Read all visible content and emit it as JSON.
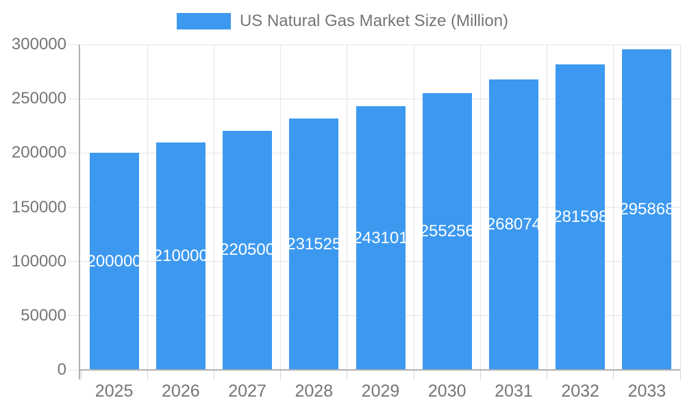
{
  "chart_data": {
    "type": "bar",
    "title": "US Natural Gas Market Size (Million)",
    "legend_entries": [
      "US Natural Gas Market Size (Million)"
    ],
    "legend_position": "top-center",
    "categories": [
      "2025",
      "2026",
      "2027",
      "2028",
      "2029",
      "2030",
      "2031",
      "2032",
      "2033"
    ],
    "values": [
      200000,
      210000,
      220500,
      231525,
      243101,
      255256,
      268074,
      281598,
      295868
    ],
    "value_labels": [
      "200000",
      "210000",
      "220500",
      "231525",
      "243101",
      "255256",
      "268074",
      "281598",
      "295868"
    ],
    "xlabel": "",
    "ylabel": "",
    "ylim": [
      0,
      300000
    ],
    "yticks": [
      0,
      50000,
      100000,
      150000,
      200000,
      250000,
      300000
    ],
    "grid": true,
    "colors": {
      "bar": "#3d99f0",
      "grid": "#e3e3e3",
      "axis": "#b0b0b0",
      "tick": "#d4d4d4",
      "tick_text": "#757575",
      "value_label_text": "#ffffff",
      "background": "#ffffff"
    }
  }
}
